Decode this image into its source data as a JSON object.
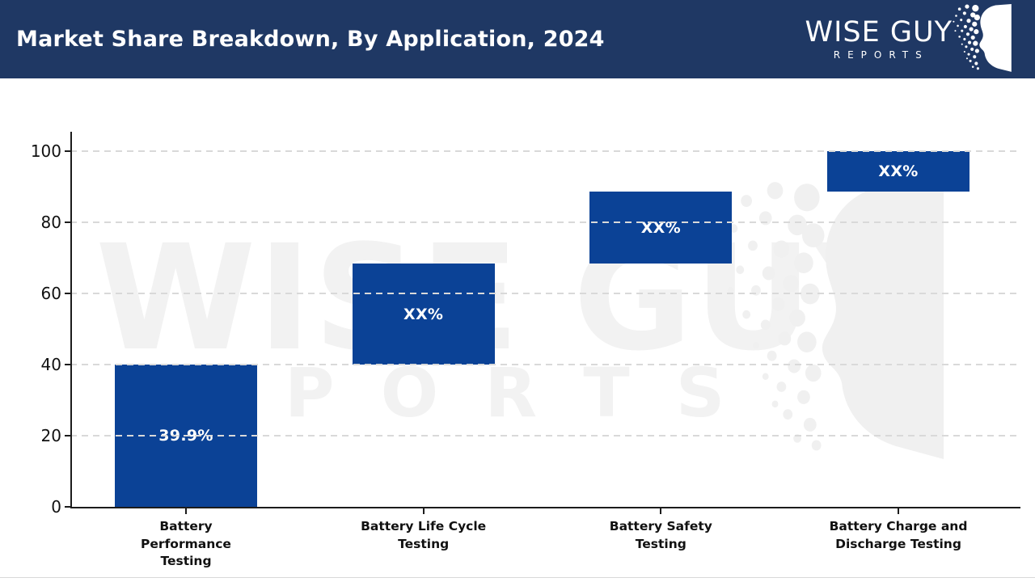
{
  "header": {
    "title": "Market Share Breakdown, By Application, 2024",
    "bg_color": "#1f3864",
    "logo": {
      "line1": "WISE GUY",
      "line2": "REPORTS"
    }
  },
  "watermark": {
    "line1": "WISE GUY",
    "line2": "P O R T S"
  },
  "chart_data": {
    "type": "bar",
    "subtype": "waterfall",
    "title": "Market Share Breakdown, By Application, 2024",
    "categories": [
      "Battery Performance Testing",
      "Battery Life Cycle Testing",
      "Battery Safety Testing",
      "Battery Charge and Discharge Testing"
    ],
    "category_lines": [
      "Battery\nPerformance\nTesting",
      "Battery Life Cycle\nTesting",
      "Battery Safety\nTesting",
      "Battery Charge and\nDischarge Testing"
    ],
    "segments": [
      {
        "category": "Battery Performance Testing",
        "start": 0,
        "end": 39.9,
        "value": 39.9,
        "label": "39.9%"
      },
      {
        "category": "Battery Life Cycle Testing",
        "start": 39.9,
        "end": 68.3,
        "value": 28.4,
        "label": "XX%"
      },
      {
        "category": "Battery Safety Testing",
        "start": 68.3,
        "end": 88.6,
        "value": 20.3,
        "label": "XX%"
      },
      {
        "category": "Battery Charge and Discharge Testing",
        "start": 88.6,
        "end": 100,
        "value": 11.4,
        "label": "XX%"
      }
    ],
    "ylim": [
      0,
      100
    ],
    "yticks": [
      0,
      20,
      40,
      60,
      80,
      100
    ],
    "bar_color": "#0b4296",
    "bar_label_color": "#ffffff",
    "grid": {
      "axis": "y",
      "style": "dashed",
      "color": "#d9d9d9",
      "drawn_over_bars": true
    },
    "legend": null
  }
}
